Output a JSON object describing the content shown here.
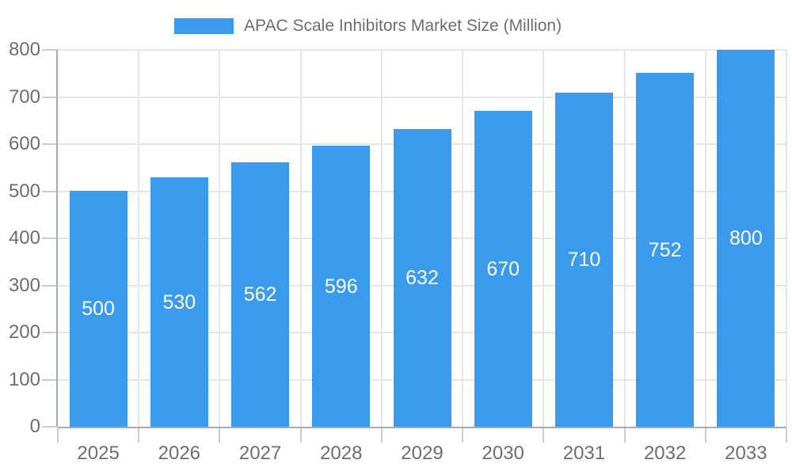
{
  "chart_data": {
    "type": "bar",
    "title": "APAC Scale Inhibitors Market Size (Million)",
    "legend_label": "APAC Scale Inhibitors Market Size (Million)",
    "legend_position": "top",
    "categories": [
      "2025",
      "2026",
      "2027",
      "2028",
      "2029",
      "2030",
      "2031",
      "2032",
      "2033"
    ],
    "values": [
      500,
      530,
      562,
      596,
      632,
      670,
      710,
      752,
      800
    ],
    "value_labels": [
      "500",
      "530",
      "562",
      "596",
      "632",
      "670",
      "710",
      "752",
      "800"
    ],
    "ytick_labels": [
      "0",
      "100",
      "200",
      "300",
      "400",
      "500",
      "600",
      "700",
      "800"
    ],
    "ylim": [
      0,
      800
    ],
    "ytick_step": 100,
    "xlabel": "",
    "ylabel": "",
    "grid": true,
    "value_label_position": "center-of-bar",
    "colors": {
      "bar": "#3A9AEC",
      "value_label": "#ffffff",
      "axis_text": "#6e6e6e",
      "legend_text": "#6e6e6e",
      "grid_line": "#e6e6e6",
      "tick_line": "#cccccc",
      "axis_line": "#aaaaaa",
      "background": "#ffffff"
    }
  }
}
